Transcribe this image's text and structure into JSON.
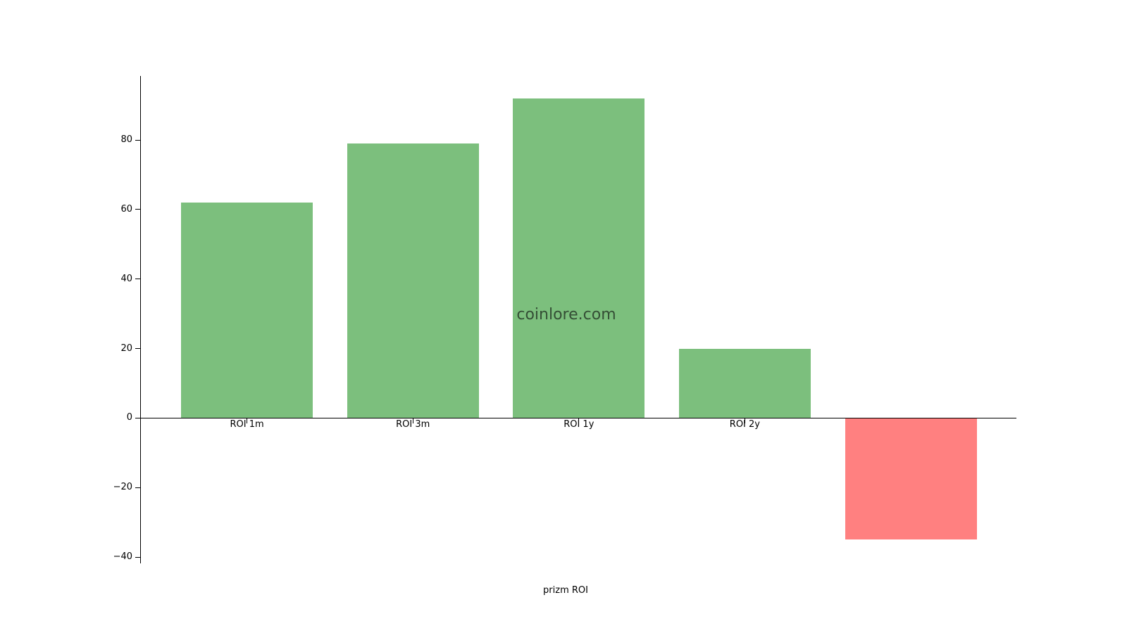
{
  "chart_data": {
    "type": "bar",
    "title": "",
    "xlabel": "prizm ROI",
    "ylabel": "",
    "categories": [
      "ROI 1m",
      "ROI 3m",
      "ROI 1y",
      "ROI 2y",
      ""
    ],
    "values": [
      62,
      79,
      92,
      20,
      -35
    ],
    "yticks": [
      80,
      60,
      40,
      20,
      0,
      -20,
      -40
    ],
    "ylim": [
      -41.5,
      98.5
    ],
    "grid": false,
    "legend": null,
    "watermark": "coinlore.com",
    "colors": {
      "positive_bar": "#7cbf7d",
      "negative_bar": "#ff8080",
      "axis": "#000000",
      "tick_text": "#000000",
      "watermark_text": "#2a3a2a"
    }
  }
}
